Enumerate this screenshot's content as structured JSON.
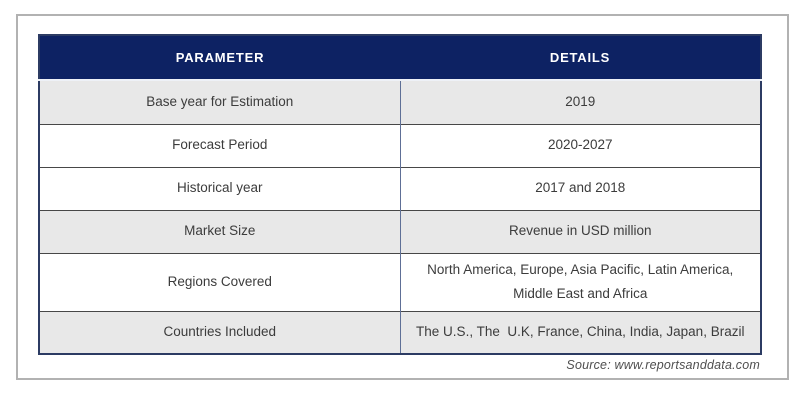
{
  "table": {
    "columns": [
      {
        "label": "PARAMETER"
      },
      {
        "label": "DETAILS"
      }
    ],
    "rows": [
      {
        "parameter": "Base year for Estimation",
        "details": "2019"
      },
      {
        "parameter": "Forecast Period",
        "details": "2020-2027"
      },
      {
        "parameter": "Historical year",
        "details": "2017 and 2018"
      },
      {
        "parameter": "Market Size",
        "details": "Revenue in USD million"
      },
      {
        "parameter": "Regions Covered",
        "details": "North America, Europe, Asia Pacific, Latin America,\nMiddle East and Africa"
      },
      {
        "parameter": "Countries Included",
        "details": "The U.S., The  U.K, France, China, India, Japan, Brazil"
      }
    ]
  },
  "source": {
    "label": "Source: www.reportsanddata.com"
  },
  "colors": {
    "header_bg": "#0d2263",
    "header_text": "#ffffff",
    "shaded_row_bg": "#e8e8e8",
    "row_border": "#474747",
    "column_divider": "#5e6f96",
    "table_border": "#2c3b63",
    "frame_border": "#b2b2b2",
    "body_text": "#3c3c3c",
    "source_text": "#4f4f4f"
  }
}
